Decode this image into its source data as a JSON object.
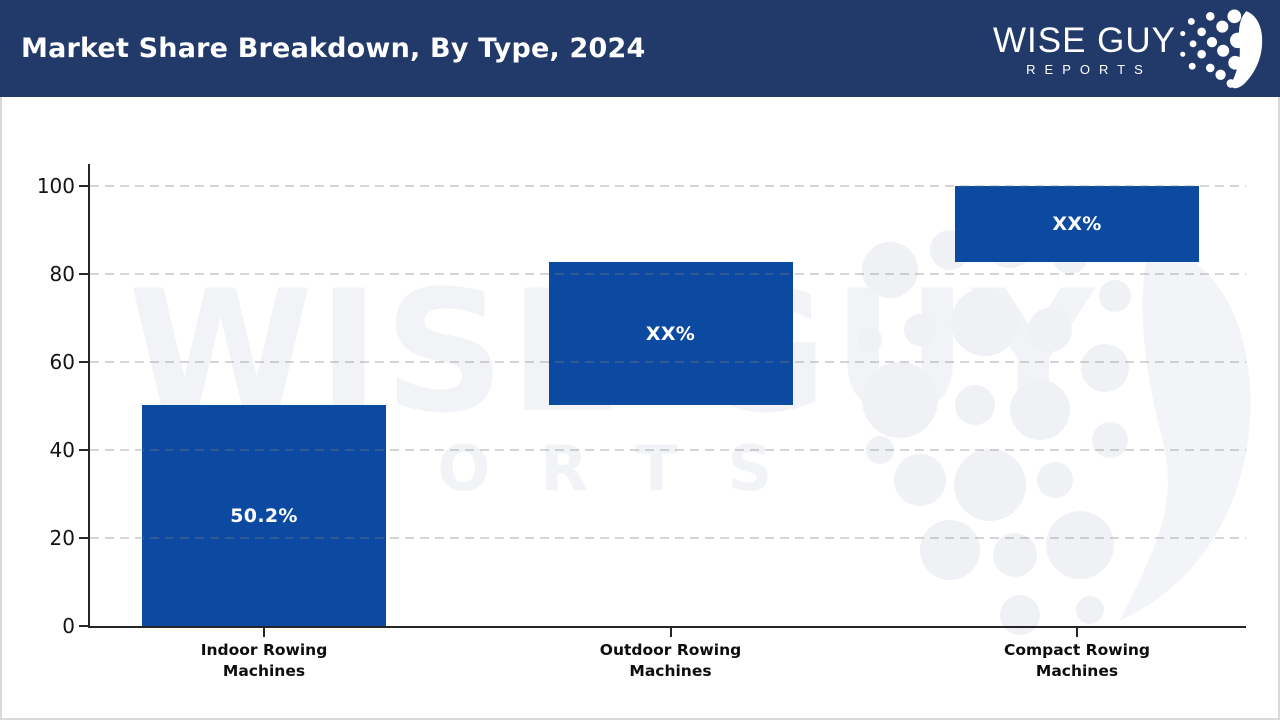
{
  "header": {
    "title": "Market Share Breakdown, By Type, 2024",
    "logo": {
      "name": "WISE GUY",
      "sub": "REPORTS"
    }
  },
  "watermark": {
    "line1": "WISE GUY",
    "line2": "REPORTS"
  },
  "chart_data": {
    "type": "bar",
    "subtype": "waterfall-stacked-percentage",
    "title": "Market Share Breakdown, By Type, 2024",
    "categories": [
      "Indoor Rowing Machines",
      "Outdoor Rowing Machines",
      "Compact Rowing Machines"
    ],
    "category_lines": [
      [
        "Indoor Rowing",
        "Machines"
      ],
      [
        "Outdoor Rowing",
        "Machines"
      ],
      [
        "Compact Rowing",
        "Machines"
      ]
    ],
    "segments": [
      {
        "category": "Indoor Rowing Machines",
        "start": 0,
        "end": 50.2,
        "label": "50.2%"
      },
      {
        "category": "Outdoor Rowing Machines",
        "start": 50.2,
        "end": 82.7,
        "label": "XX%"
      },
      {
        "category": "Compact Rowing Machines",
        "start": 82.7,
        "end": 100,
        "label": "XX%"
      }
    ],
    "xlabel": "",
    "ylabel": "",
    "ylim": [
      0,
      100
    ],
    "yticks": [
      0,
      20,
      40,
      60,
      80,
      100
    ],
    "grid": "horizontal-dashed",
    "legend": "none",
    "bar_color": "#0c4aa1",
    "bar_label_color": "#ffffff",
    "axis_color": "#262626"
  },
  "colors": {
    "header_bg": "#223a6a",
    "bar": "#0c4aa1",
    "page_bg": "#ffffff",
    "frame_border": "#d9d9d9",
    "gridline": "#dcdcdc",
    "watermark": "#f2f3f6"
  }
}
